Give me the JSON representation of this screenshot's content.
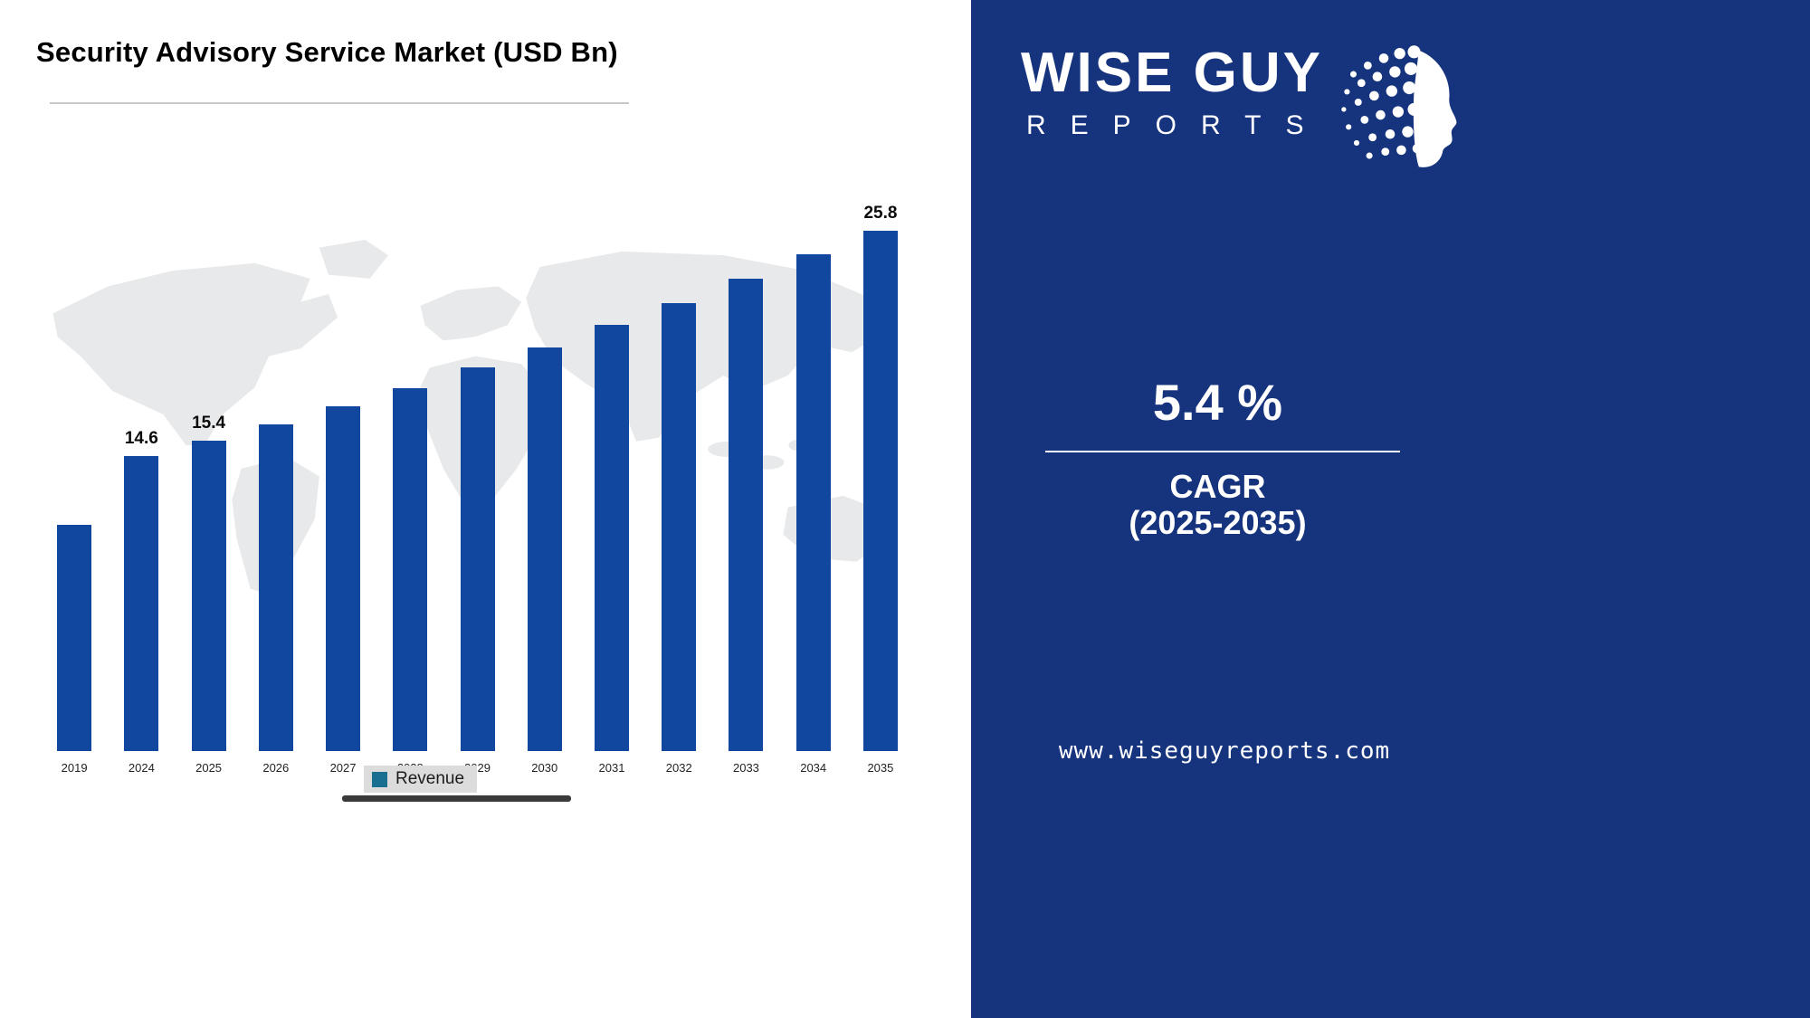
{
  "chart_data": {
    "type": "bar",
    "title": "Security Advisory Service Market (USD Bn)",
    "categories": [
      "2019",
      "2024",
      "2025",
      "2026",
      "2027",
      "2028",
      "2029",
      "2030",
      "2031",
      "2032",
      "2033",
      "2034",
      "2035"
    ],
    "values": [
      11.2,
      14.6,
      15.4,
      16.2,
      17.1,
      18.0,
      19.0,
      20.0,
      21.1,
      22.2,
      23.4,
      24.6,
      25.8
    ],
    "data_labels": {
      "2024": "14.6",
      "2025": "15.4",
      "2035": "25.8"
    },
    "legend": [
      "Revenue"
    ],
    "legend_position": "bottom",
    "grid": false,
    "ylim": [
      0,
      27
    ],
    "bar_color": "#11479e",
    "legend_color": "#186f8f"
  },
  "sidebar": {
    "logo_line1": "WISE GUY",
    "logo_line2": "REPORTS",
    "cagr_value": "5.4 %",
    "cagr_label": "CAGR",
    "cagr_period": "(2025-2035)",
    "website": "www.wiseguyreports.com",
    "background": "#16337e"
  }
}
